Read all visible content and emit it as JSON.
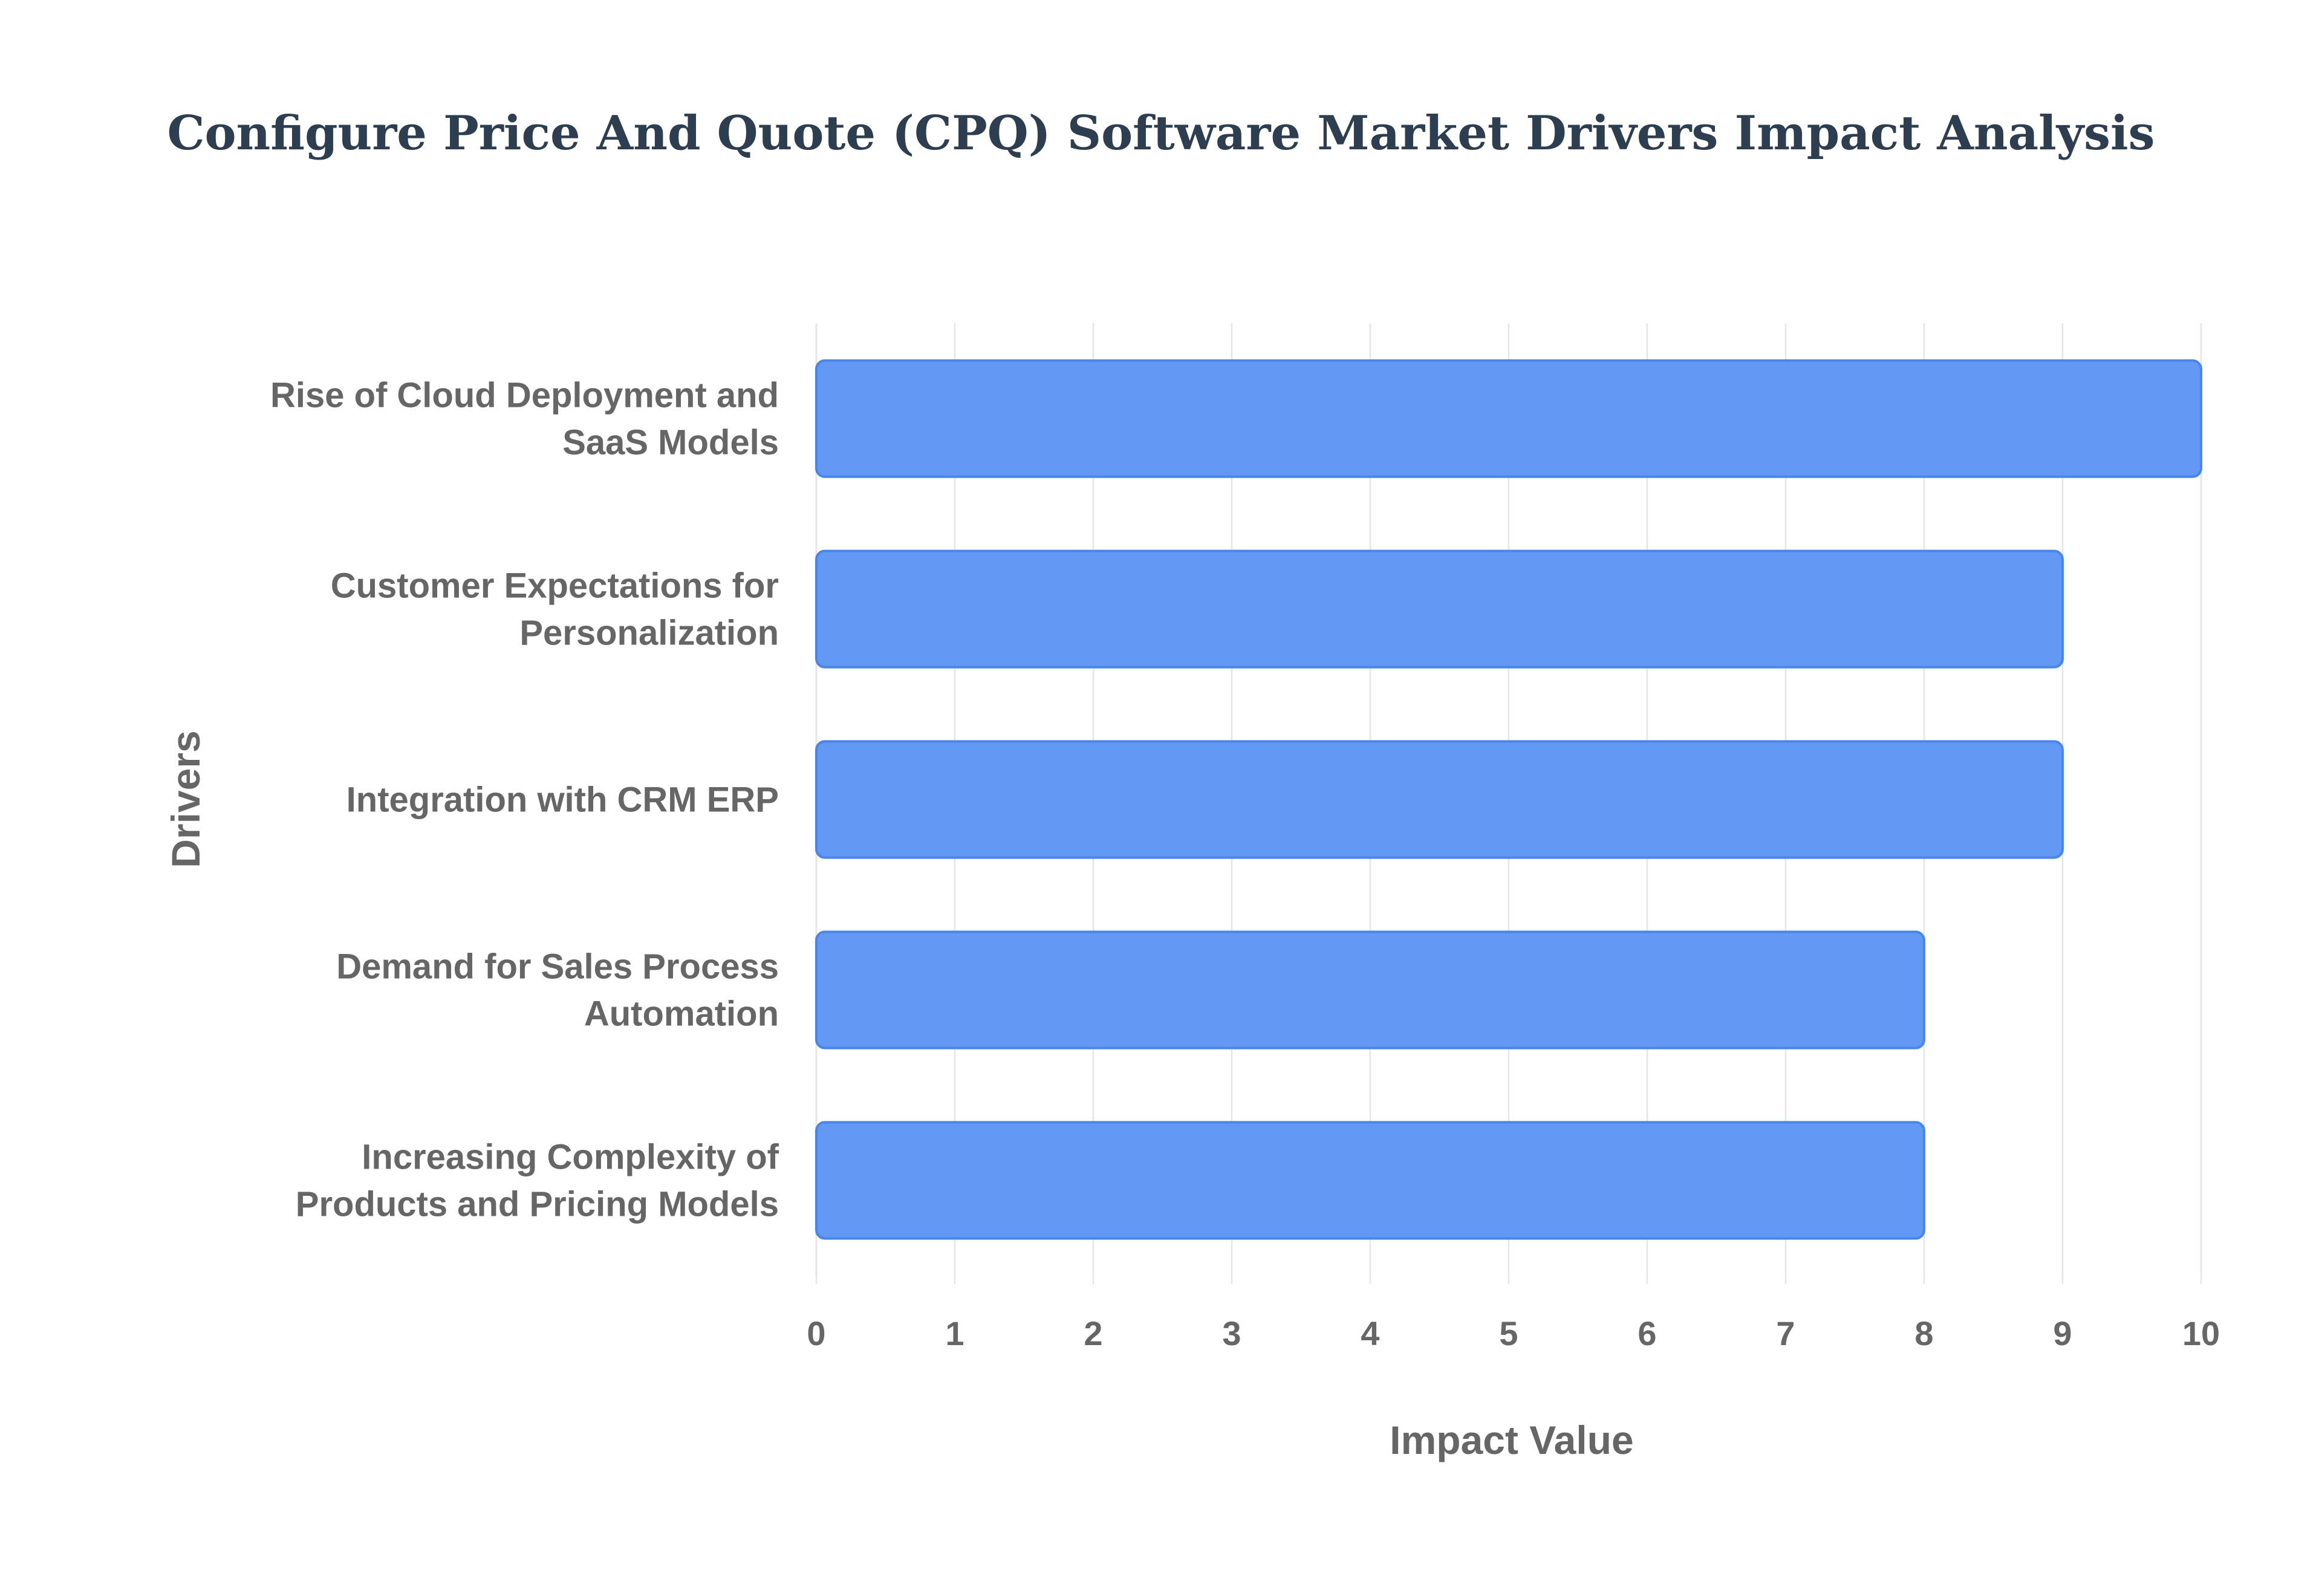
{
  "chart_data": {
    "type": "bar",
    "orientation": "horizontal",
    "title": "Configure Price And Quote (CPQ) Software Market Drivers Impact Analysis",
    "xlabel": "Impact Value",
    "ylabel": "Drivers",
    "categories": [
      [
        "Rise of Cloud Deployment and",
        "SaaS Models"
      ],
      [
        "Customer Expectations for",
        "Personalization"
      ],
      [
        "Integration with CRM ERP"
      ],
      [
        "Demand for Sales Process",
        "Automation"
      ],
      [
        "Increasing Complexity of",
        "Products and Pricing Models"
      ]
    ],
    "values": [
      10,
      9,
      9,
      8,
      8
    ],
    "xlim": [
      0,
      10
    ],
    "xticks": [
      "0",
      "1",
      "2",
      "3",
      "4",
      "5",
      "6",
      "7",
      "8",
      "9",
      "10"
    ],
    "grid": true,
    "legend": "none",
    "colors": {
      "bar_fill": "#6199f4",
      "bar_stroke": "#4a86ea",
      "grid": "#e6e6e6",
      "title": "#2c3e50",
      "text": "#666666"
    }
  }
}
